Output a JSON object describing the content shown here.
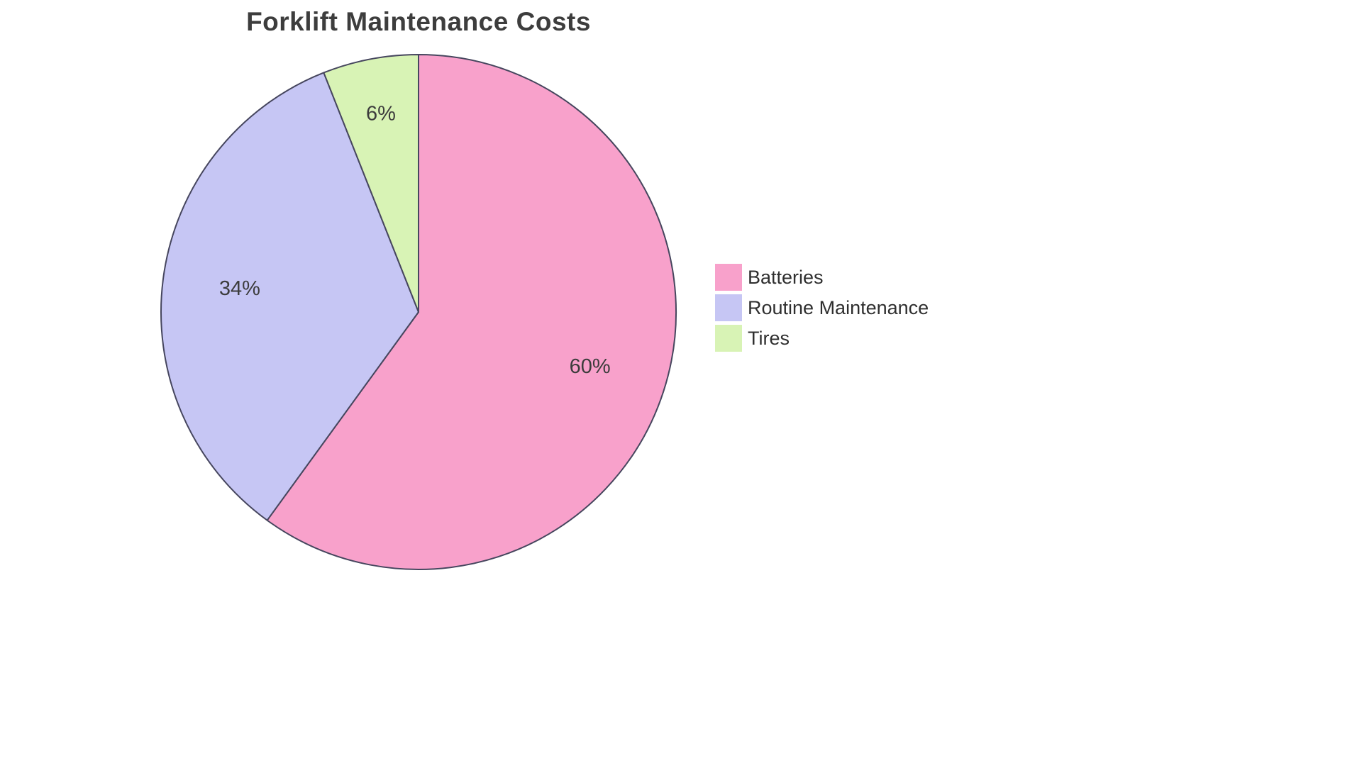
{
  "chart_data": {
    "type": "pie",
    "title": "Forklift Maintenance Costs",
    "slices": [
      {
        "label": "Batteries",
        "value": 60,
        "color": "#F8A1CB"
      },
      {
        "label": "Routine Maintenance",
        "value": 34,
        "color": "#C6C6F4"
      },
      {
        "label": "Tires",
        "value": 6,
        "color": "#D8F3B5"
      }
    ],
    "value_suffix": "%",
    "value_labels": [
      "60%",
      "34%",
      "6%"
    ],
    "stroke_color": "#46465E",
    "start_angle_deg": 0,
    "direction": "clockwise",
    "legend_position": "right",
    "background_color": "#ffffff",
    "title_color": "#3d3d3d"
  }
}
